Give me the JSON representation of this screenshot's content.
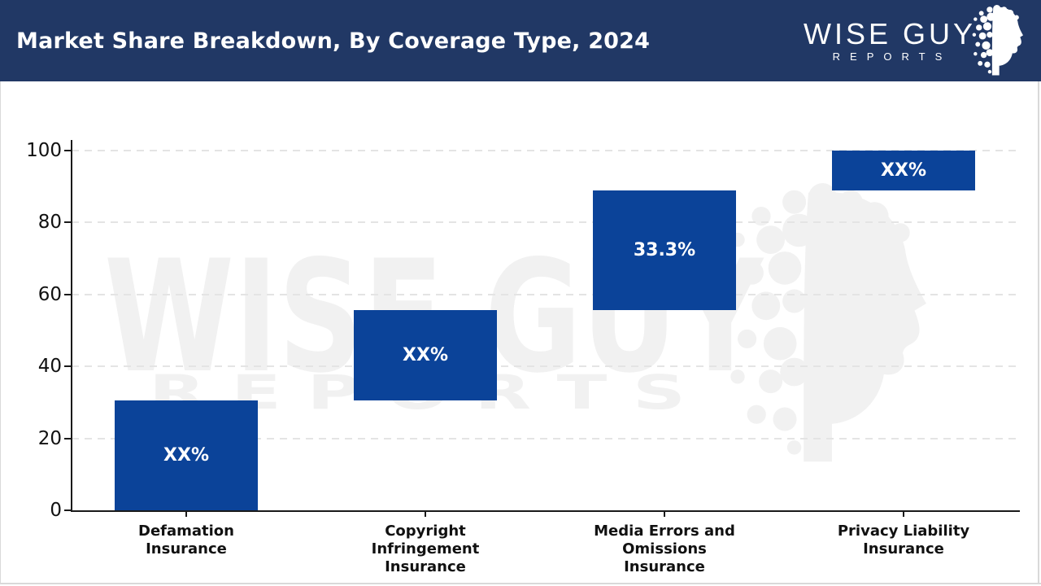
{
  "header": {
    "title": "Market Share Breakdown, By Coverage Type, 2024",
    "logo": {
      "line1": "WISE GUY",
      "line2": "REPORTS"
    }
  },
  "watermark": {
    "line1": "WISE GUY",
    "line2": "R E P O R T S"
  },
  "colors": {
    "header_bg": "#213865",
    "bar": "#0b4399",
    "grid": "#e4e4e4",
    "axis": "#1a1a1a",
    "watermark": "#f1f1f1"
  },
  "chart_data": {
    "type": "bar",
    "variant": "waterfall",
    "title": "Market Share Breakdown, By Coverage Type, 2024",
    "xlabel": "",
    "ylabel": "",
    "ylim": [
      0,
      100
    ],
    "yticks": [
      0,
      20,
      40,
      60,
      80,
      100
    ],
    "grid": {
      "horizontal": true,
      "style": "dashed"
    },
    "legend": null,
    "categories": [
      "Defamation Insurance",
      "Copyright Infringement Insurance",
      "Media Errors and Omissions Insurance",
      "Privacy Liability Insurance"
    ],
    "category_lines": [
      [
        "Defamation",
        "Insurance"
      ],
      [
        "Copyright",
        "Infringement",
        "Insurance"
      ],
      [
        "Media Errors and",
        "Omissions",
        "Insurance"
      ],
      [
        "Privacy Liability",
        "Insurance"
      ]
    ],
    "bars": [
      {
        "category": "Defamation Insurance",
        "label": "XX%",
        "start": 0,
        "end": 30.6
      },
      {
        "category": "Copyright Infringement Insurance",
        "label": "XX%",
        "start": 30.6,
        "end": 55.6
      },
      {
        "category": "Media Errors and Omissions Insurance",
        "label": "33.3%",
        "start": 55.6,
        "end": 88.9
      },
      {
        "category": "Privacy Liability Insurance",
        "label": "XX%",
        "start": 88.9,
        "end": 100
      }
    ]
  }
}
